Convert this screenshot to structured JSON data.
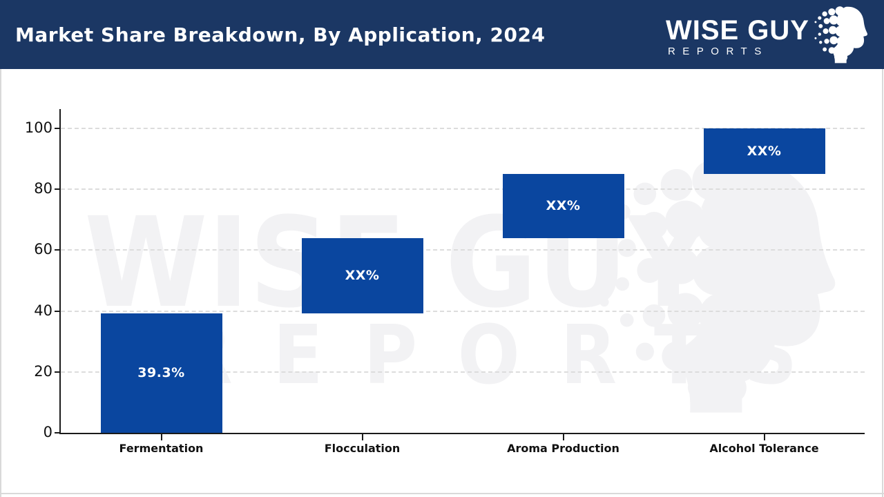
{
  "header": {
    "title": "Market Share Breakdown, By Application, 2024",
    "logo": {
      "line1": "WISE GUY",
      "line2": "REPORTS"
    }
  },
  "watermark": {
    "line1": "WISE GUY",
    "line2": "REPORTS"
  },
  "chart_data": {
    "type": "bar",
    "subtype": "waterfall",
    "title": "Market Share Breakdown, By Application, 2024",
    "categories": [
      "Fermentation",
      "Flocculation",
      "Aroma Production",
      "Alcohol Tolerance"
    ],
    "bars": [
      {
        "category": "Fermentation",
        "start": 0,
        "end": 39.3,
        "label": "39.3%"
      },
      {
        "category": "Flocculation",
        "start": 39.3,
        "end": 64,
        "label": "XX%"
      },
      {
        "category": "Aroma Production",
        "start": 64,
        "end": 85,
        "label": "XX%"
      },
      {
        "category": "Alcohol Tolerance",
        "start": 85,
        "end": 100,
        "label": "XX%"
      }
    ],
    "yticks": [
      0,
      20,
      40,
      60,
      80,
      100
    ],
    "ylim": [
      0,
      106.3
    ],
    "grid": "horizontal dashed",
    "legend": "none",
    "xlabel": "",
    "ylabel": ""
  },
  "colors": {
    "header_bg": "#1b3764",
    "bar": "#0a469f",
    "bar_label": "#ffffff",
    "grid": "#dcdcdc",
    "axis": "#1a1a1a",
    "watermark": "#f2f2f4",
    "frame_border": "#d9d9d9"
  }
}
